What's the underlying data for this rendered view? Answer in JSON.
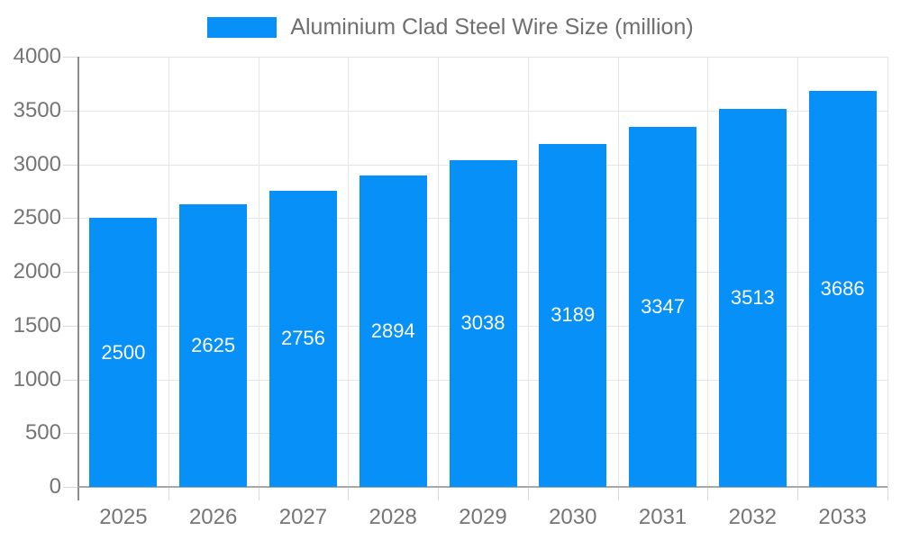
{
  "legend": {
    "label": "Aluminium Clad Steel Wire Size (million)"
  },
  "chart_data": {
    "type": "bar",
    "title": "Aluminium Clad Steel Wire Size (million)",
    "categories": [
      "2025",
      "2026",
      "2027",
      "2028",
      "2029",
      "2030",
      "2031",
      "2032",
      "2033"
    ],
    "values": [
      2500,
      2625,
      2756,
      2894,
      3038,
      3189,
      3347,
      3513,
      3686
    ],
    "xlabel": "",
    "ylabel": "",
    "ylim": [
      0,
      4000
    ],
    "ytick_step": 500,
    "yticks": [
      0,
      500,
      1000,
      1500,
      2000,
      2500,
      3000,
      3500,
      4000
    ],
    "grid": true,
    "legend_position": "top-center",
    "value_labels": "inside-center",
    "colors": {
      "bar": "#0690f8",
      "value_label": "#ffffff",
      "axis_text": "#757575",
      "legend_text": "#6f6f6f",
      "gridline": "#e6e6e6",
      "axis_line": "#8c8c8c",
      "background": "#ffffff"
    }
  }
}
